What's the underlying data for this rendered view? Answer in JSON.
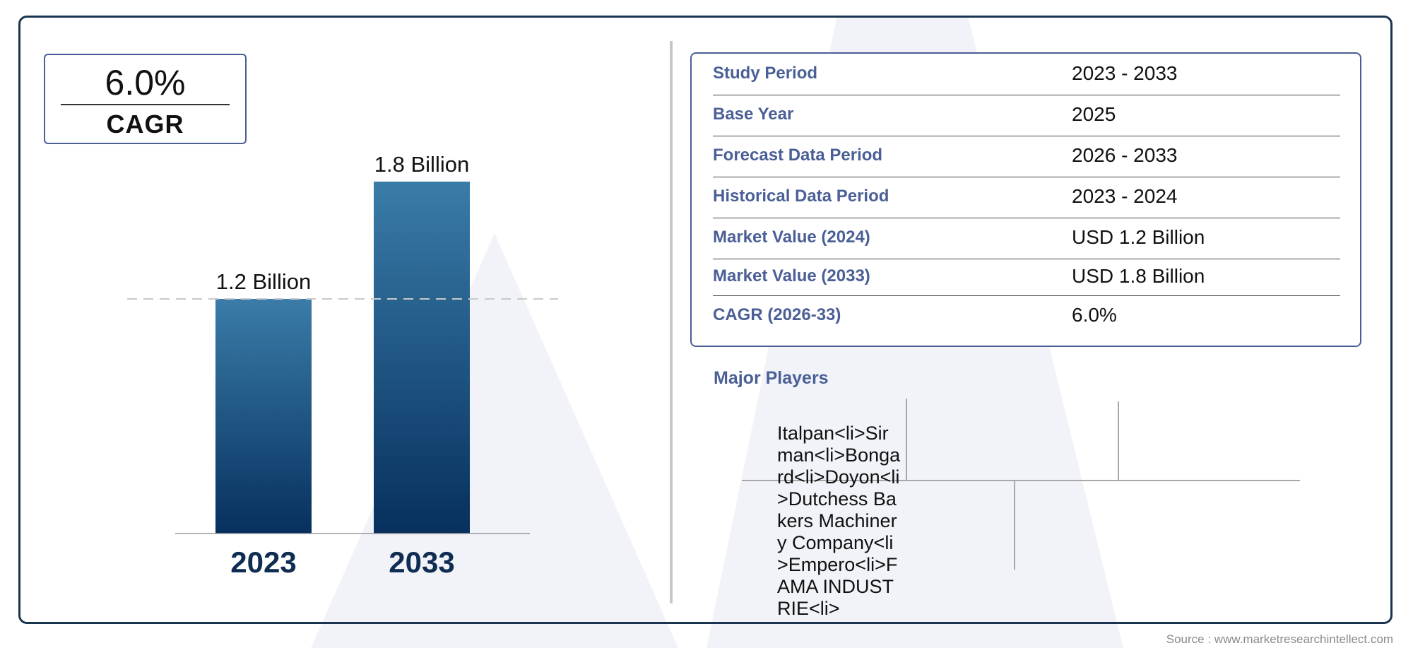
{
  "cagr_badge": {
    "value": "6.0%",
    "label": "CAGR"
  },
  "chart_data": {
    "type": "bar",
    "categories": [
      "2023",
      "2033"
    ],
    "values": [
      1.2,
      1.8
    ],
    "data_labels": [
      "1.2 Billion",
      "1.8 Billion"
    ],
    "title": "",
    "xlabel": "",
    "ylabel": "",
    "ylim": [
      0,
      1.8
    ],
    "grid": false,
    "reference_line": {
      "value": 1.2,
      "style": "dashed"
    },
    "colors": {
      "bar_top": "#3a7ca8",
      "bar_bottom": "#07305e",
      "tick_label": "#0f2c52"
    }
  },
  "info_table": {
    "rows": [
      {
        "label": "Study Period",
        "value": "2023 - 2033"
      },
      {
        "label": "Base Year",
        "value": "2025"
      },
      {
        "label": "Forecast Data Period",
        "value": "2026 - 2033"
      },
      {
        "label": "Historical Data Period",
        "value": "2023 - 2024"
      },
      {
        "label": "Market Value (2024)",
        "value": "USD 1.2 Billion"
      },
      {
        "label": "Market Value (2033)",
        "value": "USD 1.8 Billion"
      },
      {
        "label": "CAGR (2026-33)",
        "value": "6.0%"
      }
    ]
  },
  "major_players": {
    "title": "Major Players",
    "text": "Italpan<li>Sirman<li>Bongard<li>Doyon<li>Dutchess Bakers Machinery Company<li>Empero<li>FAMA INDUSTRIE<li>"
  },
  "source": "Source : www.marketresearchintellect.com",
  "colors": {
    "accent": "#4a5f95",
    "frame": "#1b3550",
    "watermark": "#f1f3f8"
  }
}
